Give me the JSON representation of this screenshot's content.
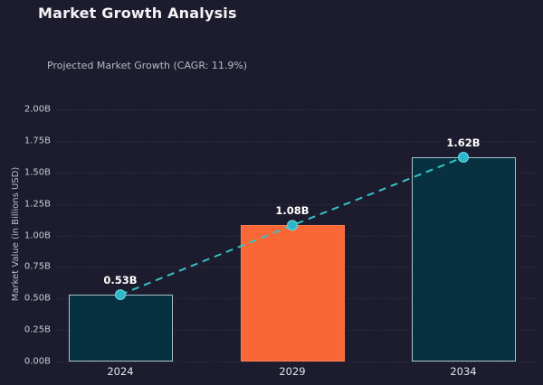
{
  "chart_data": {
    "type": "bar",
    "title": "Market Growth Analysis",
    "subtitle": "Projected Market Growth (CAGR: 11.9%)",
    "categories": [
      "2024",
      "2029",
      "2034"
    ],
    "values": [
      0.53,
      1.08,
      1.62
    ],
    "value_labels": [
      "0.53B",
      "1.08B",
      "1.62B"
    ],
    "bar_colors": [
      "#073140",
      "#fa6736",
      "#073140"
    ],
    "bar_border_colors": [
      "#a7c4ce",
      "#fb7d4e",
      "#a7c4ce"
    ],
    "trend_overlay": {
      "type": "line",
      "style": "dashed",
      "values": [
        0.53,
        1.08,
        1.62
      ],
      "line_color": "#35c4c4",
      "marker_color": "#2eb6c9",
      "marker_edge_color": "#6adbe6"
    },
    "xlabel": "",
    "ylabel": "Market Value (in Billions USD)",
    "ylim": [
      0,
      2.0
    ],
    "ytick_labels": [
      "0.00B",
      "0.25B",
      "0.50B",
      "0.75B",
      "1.00B",
      "1.25B",
      "1.50B",
      "1.75B",
      "2.00B"
    ],
    "ytick_values": [
      0,
      0.25,
      0.5,
      0.75,
      1.0,
      1.25,
      1.5,
      1.75,
      2.0
    ],
    "grid": "horizontal dashed, very faint",
    "legend": "none"
  },
  "colors": {
    "background": "#1c1c2e",
    "title_text": "#f4f4f6",
    "subtitle_text": "#b8b8c2",
    "ytick_text": "#c9c9d3",
    "ylabel_text": "#b9bdc7",
    "xtick_text": "#e5e5ec",
    "data_label_text": "#ffffff",
    "gridline": "rgba(255,255,255,0.07)"
  }
}
